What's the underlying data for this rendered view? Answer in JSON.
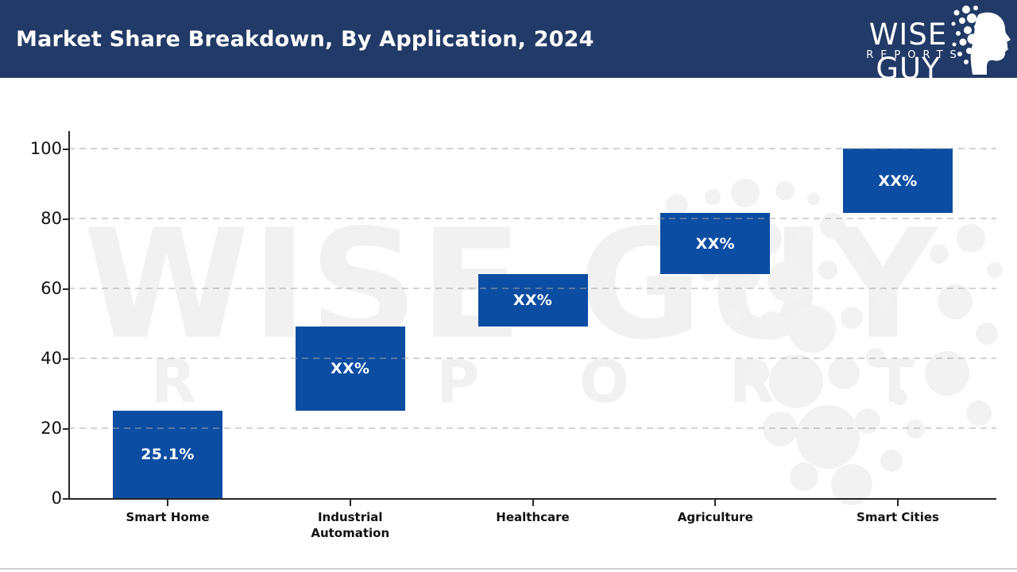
{
  "header": {
    "title": "Market Share Breakdown, By Application, 2024",
    "logo": {
      "line1": "WISE GUY",
      "line2": "REPORTS"
    }
  },
  "watermark": {
    "line1": "WISE GUY",
    "line2": "REPORTS"
  },
  "colors": {
    "header_bg": "#213A67",
    "bar": "#0B4DA2",
    "axis": "#262626",
    "grid": "#d9d9d9",
    "tick_text": "#111111",
    "value_text": "#ffffff",
    "watermark": "#f1f1f1",
    "footer_line": "#cfcfcf"
  },
  "chart_data": {
    "type": "bar",
    "subtype": "floating-waterfall",
    "title": "Market Share Breakdown, By Application, 2024",
    "categories": [
      "Smart Home",
      "Industrial Automation",
      "Healthcare",
      "Agriculture",
      "Smart Cities"
    ],
    "bars": [
      {
        "category": "Smart Home",
        "start": 0,
        "end": 25.1,
        "label": "25.1%"
      },
      {
        "category": "Industrial Automation",
        "start": 25.1,
        "end": 49,
        "label": "XX%"
      },
      {
        "category": "Healthcare",
        "start": 49,
        "end": 64,
        "label": "XX%"
      },
      {
        "category": "Agriculture",
        "start": 64,
        "end": 81.5,
        "label": "XX%"
      },
      {
        "category": "Smart Cities",
        "start": 81.5,
        "end": 100,
        "label": "XX%"
      }
    ],
    "xlabel": "",
    "ylabel": "",
    "y_ticks": [
      0,
      20,
      40,
      60,
      80,
      100
    ],
    "ylim": [
      0,
      105
    ],
    "grid": "horizontal-dashed",
    "legend": "none",
    "units": "percent"
  }
}
